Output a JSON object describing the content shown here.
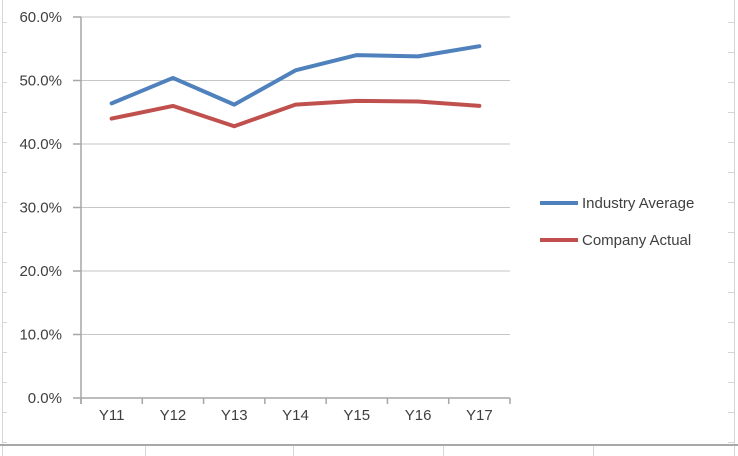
{
  "chart_data": {
    "type": "line",
    "categories": [
      "Y11",
      "Y12",
      "Y13",
      "Y14",
      "Y15",
      "Y16",
      "Y17"
    ],
    "series": [
      {
        "name": "Industry Average",
        "color": "#4F81BD",
        "values": [
          46.4,
          50.4,
          46.2,
          51.6,
          54.0,
          53.8,
          55.4
        ]
      },
      {
        "name": "Company Actual",
        "color": "#C0504D",
        "values": [
          44.0,
          46.0,
          42.8,
          46.2,
          46.8,
          46.7,
          46.0
        ]
      }
    ],
    "title": "",
    "xlabel": "",
    "ylabel": "",
    "ylim": [
      0,
      60
    ],
    "ytick_step": 10,
    "ytick_labels": [
      "0.0%",
      "10.0%",
      "20.0%",
      "30.0%",
      "40.0%",
      "50.0%",
      "60.0%"
    ],
    "grid": true,
    "legend_position": "right",
    "legend_entries": [
      "Industry Average",
      "Company Actual"
    ]
  },
  "colors": {
    "series_industry_average": "#4F81BD",
    "series_company_actual": "#C0504D",
    "gridline": "#c6c6c6",
    "axis": "#a6a6a6",
    "tick_text": "#3f3f3f",
    "worksheet_gridline": "#d6d6d6",
    "chart_border": "#a8a8a8",
    "background": "#ffffff"
  }
}
